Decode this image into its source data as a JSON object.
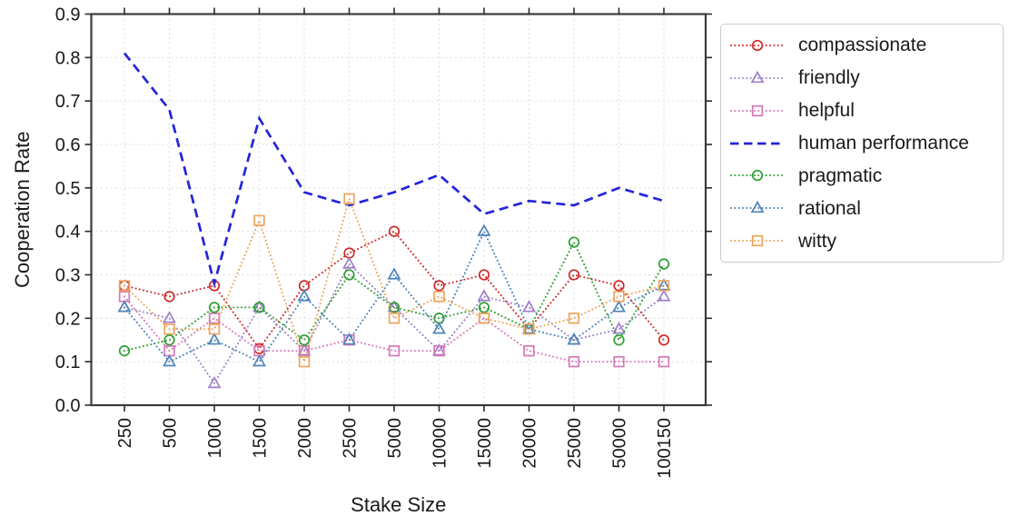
{
  "chart_data": {
    "type": "line",
    "title": "",
    "xlabel": "Stake Size",
    "ylabel": "Cooperation Rate",
    "categories": [
      "250",
      "500",
      "1000",
      "1500",
      "2000",
      "2500",
      "5000",
      "10000",
      "15000",
      "20000",
      "25000",
      "50000",
      "100150"
    ],
    "ylim": [
      0.0,
      0.9
    ],
    "yticks": [
      "0.0",
      "0.1",
      "0.2",
      "0.3",
      "0.4",
      "0.5",
      "0.6",
      "0.7",
      "0.8",
      "0.9"
    ],
    "grid": true,
    "grid_color": "#dcdcdc",
    "legend_position": "outside-right",
    "series": [
      {
        "name": "compassionate",
        "color": "#d02a2a",
        "marker": "circle",
        "linestyle": "dotted",
        "values": [
          0.275,
          0.25,
          0.275,
          0.13,
          0.275,
          0.35,
          0.4,
          0.275,
          0.3,
          0.175,
          0.3,
          0.275,
          0.15
        ]
      },
      {
        "name": "friendly",
        "color": "#9f7fca",
        "marker": "triangle",
        "linestyle": "dotted",
        "values": [
          0.225,
          0.2,
          0.05,
          0.225,
          0.125,
          0.325,
          0.225,
          0.125,
          0.25,
          0.225,
          0.15,
          0.175,
          0.25
        ]
      },
      {
        "name": "helpful",
        "color": "#d678b8",
        "marker": "square",
        "linestyle": "dotted",
        "values": [
          0.25,
          0.125,
          0.2,
          0.125,
          0.125,
          0.15,
          0.125,
          0.125,
          0.2,
          0.125,
          0.1,
          0.1,
          0.1
        ]
      },
      {
        "name": "human performance",
        "color": "#2424d8",
        "marker": "none",
        "linestyle": "dashed",
        "values": [
          0.81,
          0.68,
          0.28,
          0.66,
          0.49,
          0.46,
          0.49,
          0.53,
          0.44,
          0.47,
          0.46,
          0.5,
          0.47
        ]
      },
      {
        "name": "pragmatic",
        "color": "#2fa032",
        "marker": "circle",
        "linestyle": "dotted",
        "values": [
          0.125,
          0.15,
          0.225,
          0.225,
          0.15,
          0.3,
          0.225,
          0.2,
          0.225,
          0.175,
          0.375,
          0.15,
          0.325
        ]
      },
      {
        "name": "rational",
        "color": "#4d84ba",
        "marker": "triangle",
        "linestyle": "dotted",
        "values": [
          0.225,
          0.1,
          0.15,
          0.1,
          0.25,
          0.15,
          0.3,
          0.175,
          0.4,
          0.175,
          0.15,
          0.225,
          0.275
        ]
      },
      {
        "name": "witty",
        "color": "#eda45c",
        "marker": "square",
        "linestyle": "dotted",
        "values": [
          0.275,
          0.175,
          0.175,
          0.425,
          0.1,
          0.475,
          0.2,
          0.25,
          0.2,
          0.175,
          0.2,
          0.25,
          0.275
        ]
      }
    ]
  }
}
